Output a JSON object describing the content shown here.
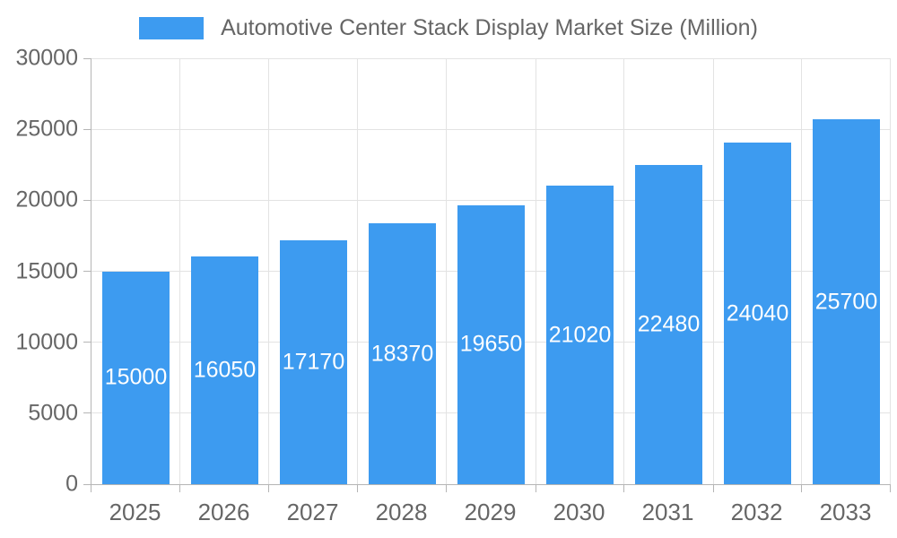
{
  "chart_data": {
    "type": "bar",
    "title": "Automotive Center Stack Display Market Size (Million)",
    "categories": [
      "2025",
      "2026",
      "2027",
      "2028",
      "2029",
      "2030",
      "2031",
      "2032",
      "2033"
    ],
    "values": [
      15000,
      16050,
      17170,
      18370,
      19650,
      21020,
      22480,
      24040,
      25700
    ],
    "xlabel": "",
    "ylabel": "",
    "ylim": [
      0,
      30000
    ],
    "yticks": [
      0,
      5000,
      10000,
      15000,
      20000,
      25000,
      30000
    ],
    "grid": true,
    "legend_position": "top",
    "bar_labels_visible": true,
    "bar_label_position": "center-inside"
  },
  "colors": {
    "bar": "#3D9BF0",
    "gridline": "#e3e3e3",
    "axis_line": "#b5b5b5",
    "axis_text": "#666666",
    "value_label": "#ffffff",
    "background": "#ffffff"
  }
}
